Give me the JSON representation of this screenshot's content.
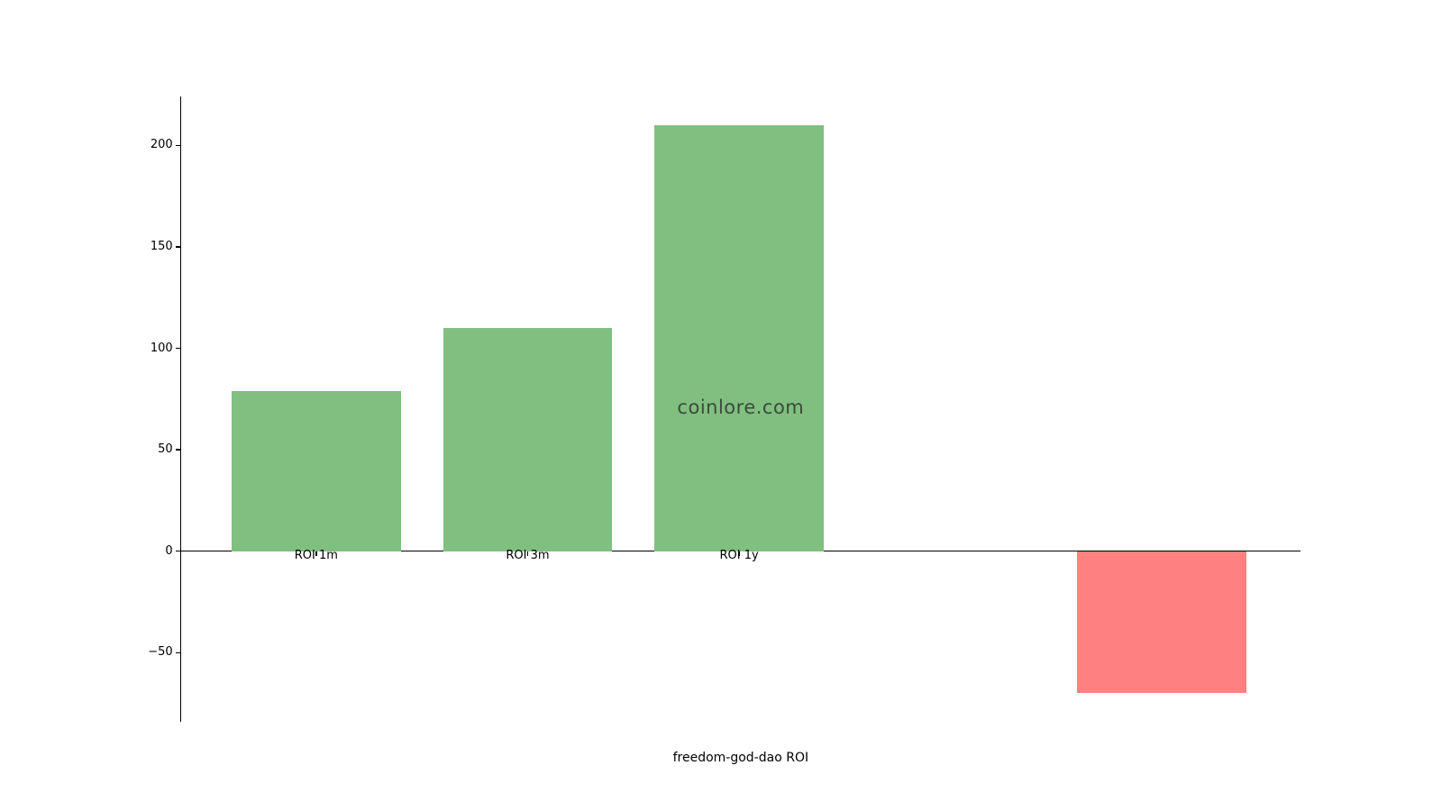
{
  "page": {
    "watermark": "coinlore.com",
    "footer_title": "freedom-god-dao ROI"
  },
  "chart_data": {
    "type": "bar",
    "title": "freedom-god-dao ROI",
    "watermark": "coinlore.com",
    "categories": [
      "ROI 1m",
      "ROI 3m",
      "ROI 1y",
      ""
    ],
    "x": [
      0,
      1,
      2,
      4
    ],
    "values": [
      79,
      110,
      210,
      -70
    ],
    "bar_colors": [
      "#80bf80",
      "#80bf80",
      "#80bf80",
      "#ff8080"
    ],
    "positive_color": "#80bf80",
    "negative_color": "#ff8080",
    "bar_width": 0.8,
    "xlim": [
      -0.64,
      4.655
    ],
    "ylim": [
      -84,
      224
    ],
    "yticks": [
      200,
      150,
      100,
      50,
      0,
      -50
    ],
    "ytick_labels": [
      "200",
      "150",
      "100",
      "50",
      "0",
      "−50"
    ],
    "xlabel": "",
    "ylabel": "",
    "grid": false,
    "legend": "none",
    "axis_color": "#000000",
    "watermark_color": "#3c4a3c",
    "x_axis_position": "zero"
  }
}
